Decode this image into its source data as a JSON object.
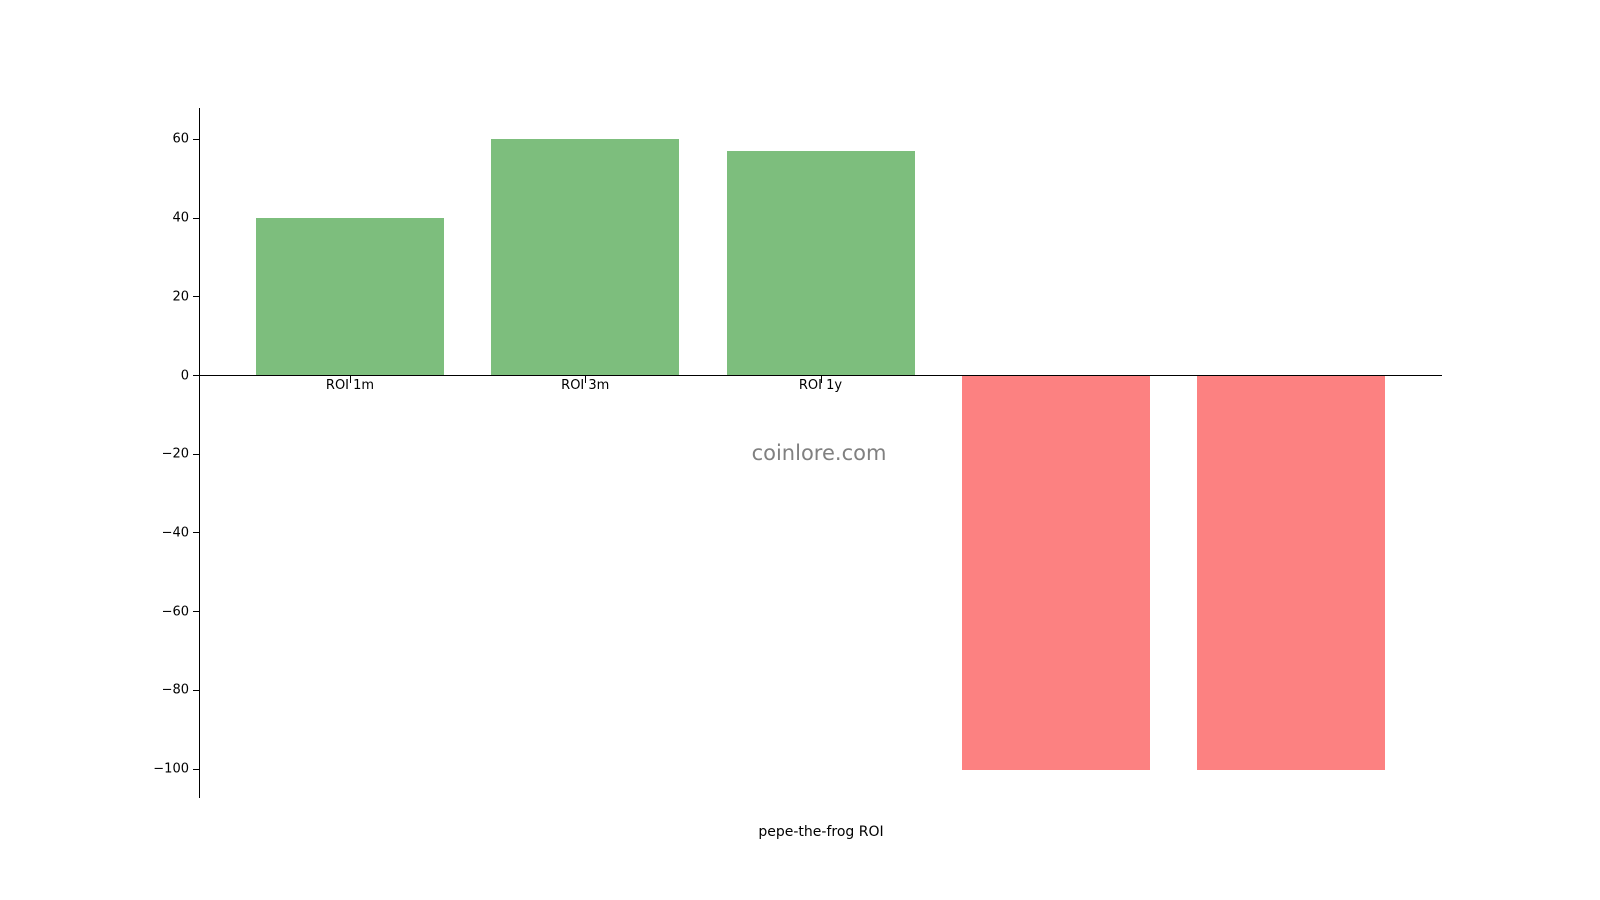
{
  "page": {
    "background": "#ffffff"
  },
  "chart_data": {
    "type": "bar",
    "title": "",
    "xlabel": "pepe-the-frog ROI",
    "ylabel": "",
    "watermark": "coinlore.com",
    "categories": [
      "ROI 1m",
      "ROI 3m",
      "ROI 1y",
      "",
      ""
    ],
    "values": [
      40,
      60,
      57,
      -100,
      -100
    ],
    "yticks": [
      60,
      40,
      20,
      0,
      -20,
      -40,
      -60,
      -80,
      -100
    ],
    "ylim": [
      -108,
      68
    ],
    "grid": false,
    "legend": null,
    "colors": {
      "positive_bar": "#7dbe7d",
      "negative_bar": "#fc8181",
      "axis": "#000000",
      "tick_text": "#000000",
      "watermark": "#808080"
    }
  }
}
